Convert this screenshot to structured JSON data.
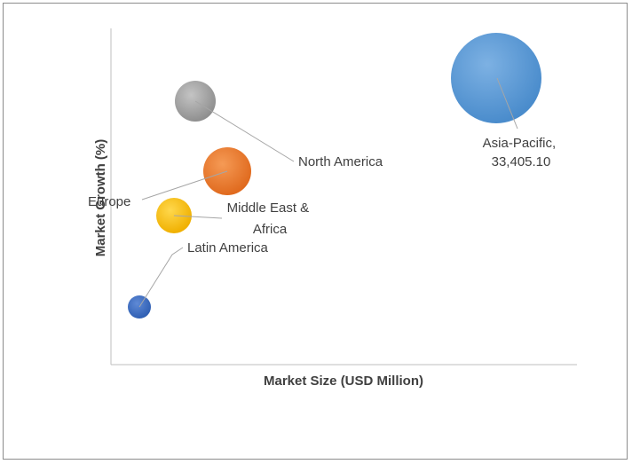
{
  "chart_data": {
    "type": "bubble",
    "title": "",
    "xlabel": "Market Size (USD Million)",
    "ylabel": "Market Growth (%)",
    "grid": false,
    "legend": "none",
    "series": [
      {
        "name": "Asia-Pacific",
        "label_lines": [
          "Asia-Pacific,",
          "33,405.10"
        ],
        "size_value": 33405.1,
        "color": "#5b9bd5"
      },
      {
        "name": "North America",
        "label_lines": [
          "North America"
        ],
        "color": "#a5a5a5"
      },
      {
        "name": "Europe",
        "label_lines": [
          "Europe"
        ],
        "color": "#ed7d31"
      },
      {
        "name": "Middle East & Africa",
        "label_lines": [
          "Middle East &",
          "Africa"
        ],
        "color": "#ffc000"
      },
      {
        "name": "Latin America",
        "label_lines": [
          "Latin America"
        ],
        "color": "#4472c4"
      }
    ]
  }
}
